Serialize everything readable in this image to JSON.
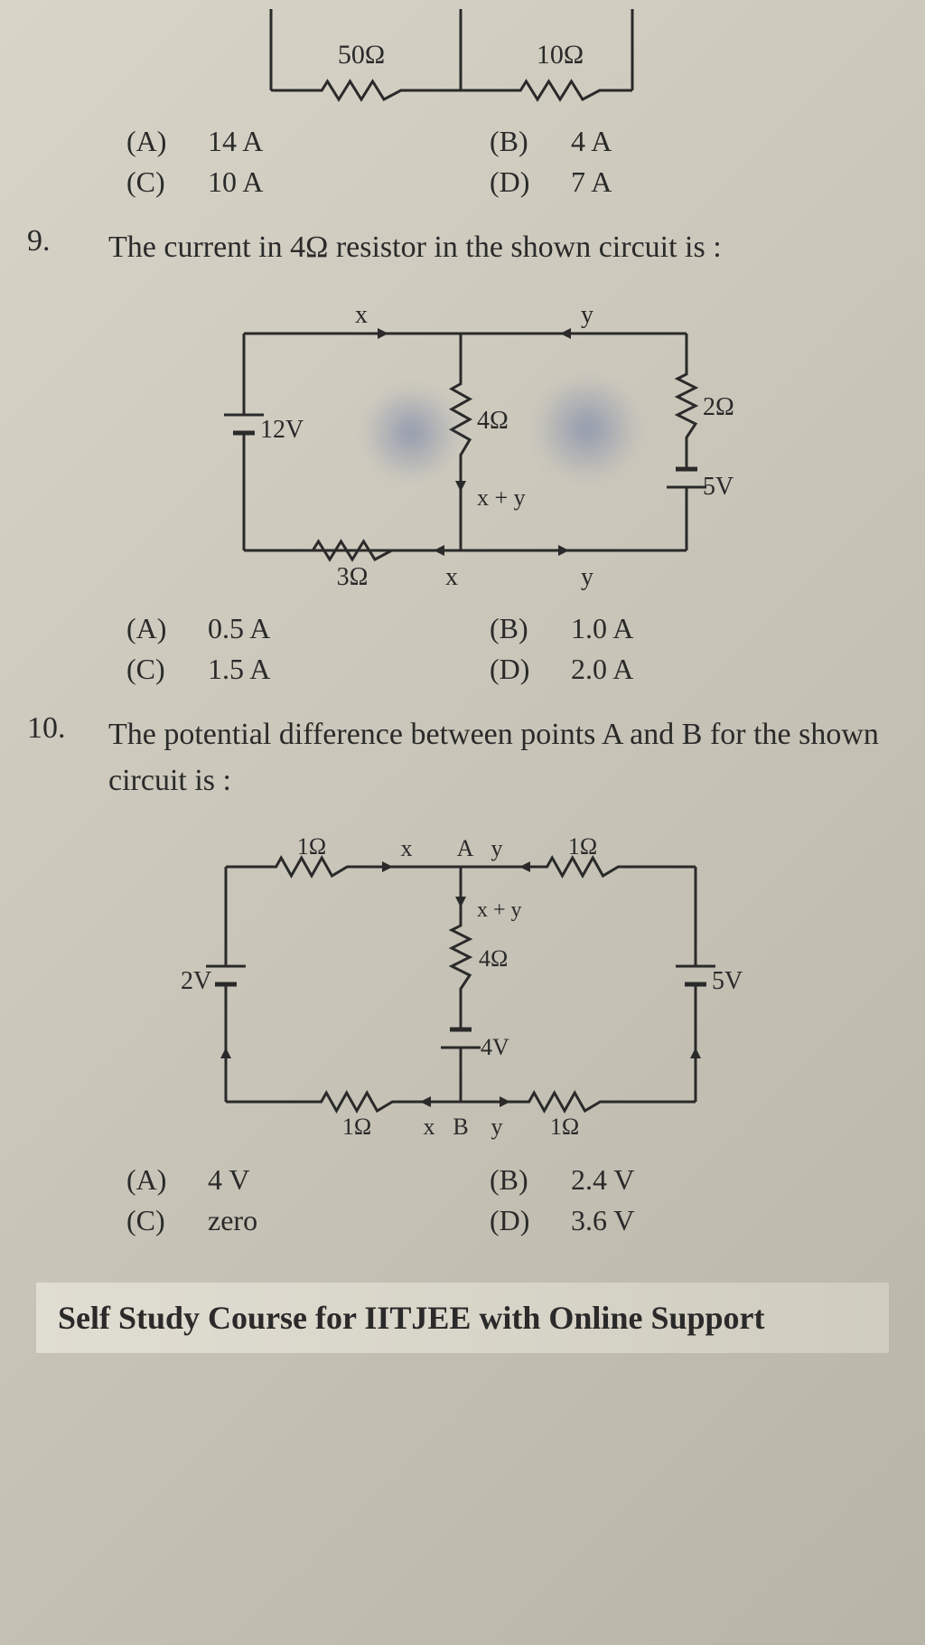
{
  "top_diagram": {
    "r_left": "50Ω",
    "r_right": "10Ω",
    "stroke": "#2a2a2a",
    "stroke_width": 3
  },
  "q8_opts": {
    "A": {
      "letter": "(A)",
      "value": "14 A"
    },
    "B": {
      "letter": "(B)",
      "value": "4 A"
    },
    "C": {
      "letter": "(C)",
      "value": "10 A"
    },
    "D": {
      "letter": "(D)",
      "value": "7 A"
    }
  },
  "q9": {
    "num": "9.",
    "text": "The current in 4Ω resistor in the shown circuit is :",
    "diagram": {
      "v_left": "12V",
      "r_mid": "4Ω",
      "r_right": "2Ω",
      "v_right": "5V",
      "r_bottom": "3Ω",
      "lbl_x_top": "x",
      "lbl_y_top": "y",
      "lbl_xy": "x + y",
      "lbl_x_bot": "x",
      "lbl_y_bot": "y",
      "stroke": "#2a2a2a",
      "stroke_width": 3
    },
    "opts": {
      "A": {
        "letter": "(A)",
        "value": "0.5 A"
      },
      "B": {
        "letter": "(B)",
        "value": "1.0 A"
      },
      "C": {
        "letter": "(C)",
        "value": "1.5 A"
      },
      "D": {
        "letter": "(D)",
        "value": "2.0 A"
      }
    }
  },
  "q10": {
    "num": "10.",
    "text": "The potential difference between points A and B for the shown circuit is :",
    "diagram": {
      "r_tl": "1Ω",
      "r_tr": "1Ω",
      "r_bl": "1Ω",
      "r_br": "1Ω",
      "r_mid": "4Ω",
      "v_left": "2V",
      "v_right": "5V",
      "v_mid": "4V",
      "lbl_x_top": "x",
      "lbl_y_top": "y",
      "lbl_A": "A",
      "lbl_xy": "x + y",
      "lbl_x_bot": "x",
      "lbl_B": "B",
      "lbl_y_bot": "y",
      "stroke": "#2a2a2a",
      "stroke_width": 3
    },
    "opts": {
      "A": {
        "letter": "(A)",
        "value": "4 V"
      },
      "B": {
        "letter": "(B)",
        "value": "2.4 V"
      },
      "C": {
        "letter": "(C)",
        "value": "zero"
      },
      "D": {
        "letter": "(D)",
        "value": "3.6 V"
      }
    }
  },
  "footer": "Self Study Course for IITJEE with Online Support"
}
